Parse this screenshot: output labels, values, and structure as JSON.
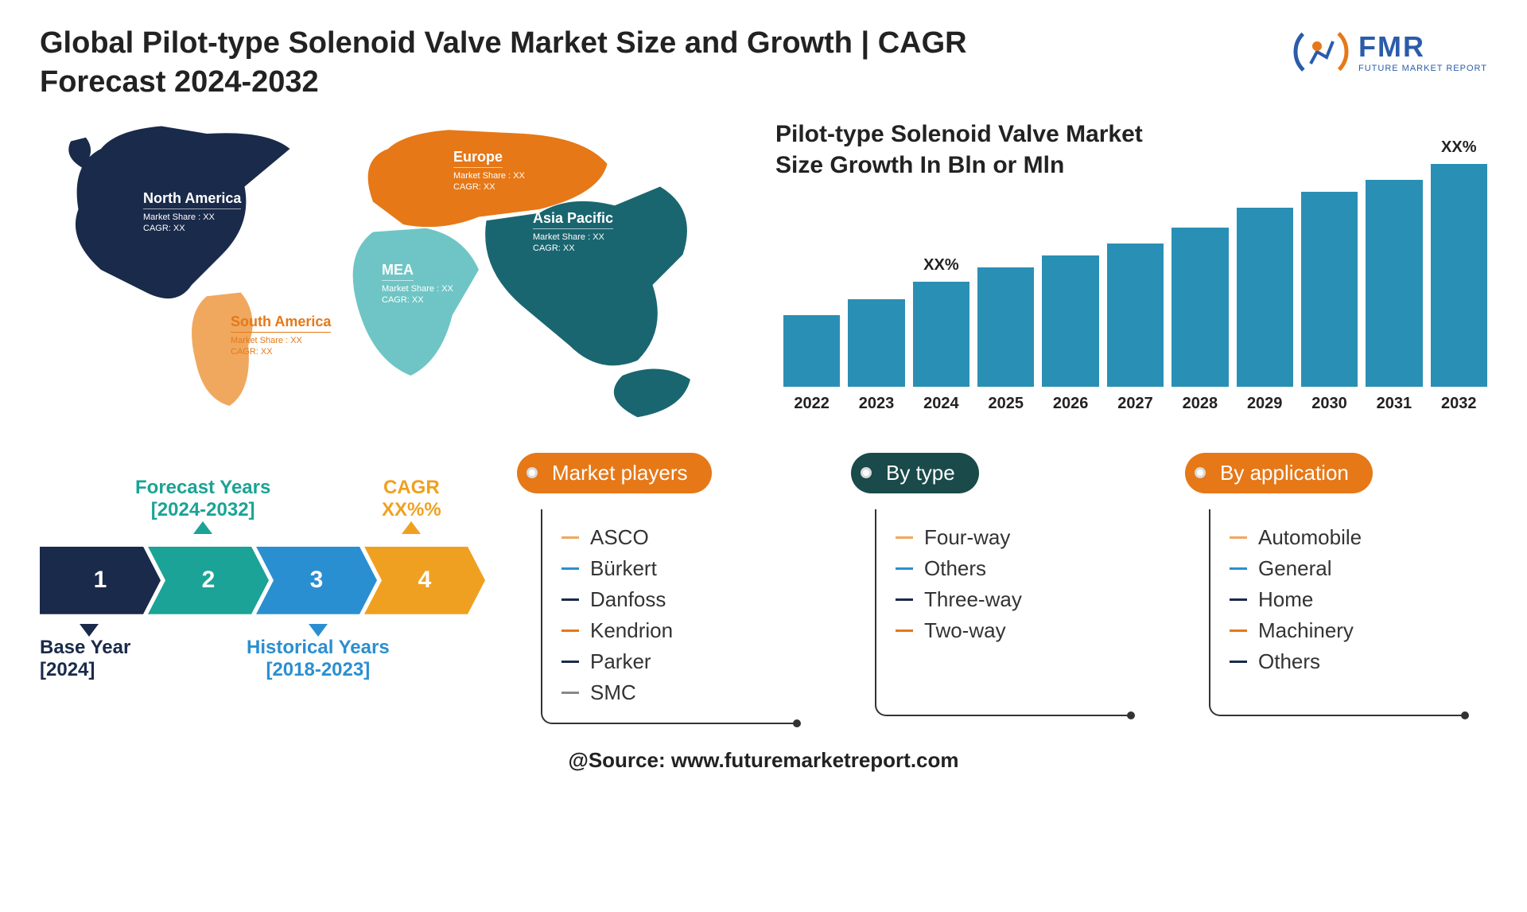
{
  "title": "Global Pilot-type Solenoid Valve Market Size and Growth | CAGR Forecast 2024-2032",
  "logo": {
    "main": "FMR",
    "sub": "FUTURE MARKET REPORT"
  },
  "map": {
    "regions": [
      {
        "id": "na",
        "name": "North America",
        "share": "Market Share : XX",
        "cagr": "CAGR: XX",
        "color": "#1a2a4a"
      },
      {
        "id": "sa",
        "name": "South America",
        "share": "Market Share : XX",
        "cagr": "CAGR: XX",
        "color": "#f0a85f"
      },
      {
        "id": "eu",
        "name": "Europe",
        "share": "Market Share : XX",
        "cagr": "CAGR: XX",
        "color": "#e67817"
      },
      {
        "id": "mea",
        "name": "MEA",
        "share": "Market Share : XX",
        "cagr": "CAGR: XX",
        "color": "#6fc5c5"
      },
      {
        "id": "ap",
        "name": "Asia Pacific",
        "share": "Market Share : XX",
        "cagr": "CAGR: XX",
        "color": "#1a6670"
      }
    ]
  },
  "chart": {
    "title": "Pilot-type Solenoid Valve Market Size Growth In Bln or Mln",
    "bar_color": "#2a8fb5",
    "years": [
      "2022",
      "2023",
      "2024",
      "2025",
      "2026",
      "2027",
      "2028",
      "2029",
      "2030",
      "2031",
      "2032"
    ],
    "values": [
      90,
      110,
      132,
      150,
      165,
      180,
      200,
      225,
      245,
      260,
      280
    ],
    "max_height": 280,
    "label_2024": "XX%",
    "label_2032": "XX%",
    "year_fontsize": 20,
    "label_fontsize": 20,
    "bar_gap": 10
  },
  "timeline": {
    "forecast": {
      "label": "Forecast Years",
      "range": "[2024-2032]",
      "color": "#1aa396"
    },
    "cagr": {
      "label": "CAGR",
      "value": "XX%%",
      "color": "#f0a020"
    },
    "base": {
      "label": "Base Year",
      "range": "[2024]",
      "color": "#1a2a4a"
    },
    "historical": {
      "label": "Historical Years",
      "range": "[2018-2023]",
      "color": "#2a8fd0"
    },
    "segments": [
      {
        "num": "1",
        "color": "#1a2a4a"
      },
      {
        "num": "2",
        "color": "#1aa396"
      },
      {
        "num": "3",
        "color": "#2a8fd0"
      },
      {
        "num": "4",
        "color": "#f0a020"
      }
    ]
  },
  "segments": [
    {
      "title": "Market players",
      "header_color": "#e67817",
      "items": [
        {
          "label": "ASCO",
          "color": "#f0a85f"
        },
        {
          "label": "Bürkert",
          "color": "#2a8fd0"
        },
        {
          "label": "Danfoss",
          "color": "#1a2a4a"
        },
        {
          "label": "Kendrion",
          "color": "#e67817"
        },
        {
          "label": "Parker",
          "color": "#1a2a4a"
        },
        {
          "label": "SMC",
          "color": "#888"
        }
      ]
    },
    {
      "title": "By type",
      "header_color": "#1a4a4a",
      "items": [
        {
          "label": "Four-way",
          "color": "#f0a85f"
        },
        {
          "label": "Others",
          "color": "#2a8fd0"
        },
        {
          "label": "Three-way",
          "color": "#1a2a4a"
        },
        {
          "label": "Two-way",
          "color": "#e67817"
        }
      ]
    },
    {
      "title": "By application",
      "header_color": "#e67817",
      "items": [
        {
          "label": "Automobile",
          "color": "#f0a85f"
        },
        {
          "label": "General",
          "color": "#2a8fd0"
        },
        {
          "label": "Home",
          "color": "#1a2a4a"
        },
        {
          "label": "Machinery",
          "color": "#e67817"
        },
        {
          "label": "Others",
          "color": "#1a2a4a"
        }
      ]
    }
  ],
  "source": "@Source: www.futuremarketreport.com"
}
